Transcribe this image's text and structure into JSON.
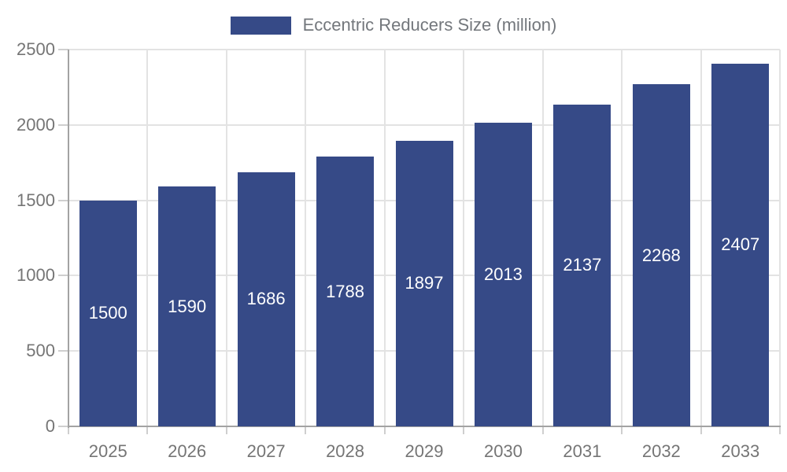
{
  "legend": {
    "label": "Eccentric Reducers Size (million)"
  },
  "colors": {
    "bar": "#364a87",
    "grid": "#e3e3e3",
    "axis": "#a3a3a3",
    "tick": "#cfcfcf",
    "axis_text": "#757575",
    "legend_text": "#73777c",
    "value_text": "#ffffff",
    "background": "#ffffff"
  },
  "chart_data": {
    "type": "bar",
    "title": "Eccentric Reducers Size (million)",
    "categories": [
      "2025",
      "2026",
      "2027",
      "2028",
      "2029",
      "2030",
      "2031",
      "2032",
      "2033"
    ],
    "values": [
      1500,
      1590,
      1686,
      1788,
      1897,
      2013,
      2137,
      2268,
      2407
    ],
    "xlabel": "",
    "ylabel": "",
    "ylim": [
      0,
      2500
    ],
    "yticks": [
      0,
      500,
      1000,
      1500,
      2000,
      2500
    ],
    "grid": true,
    "legend_position": "top",
    "value_label_position": "inside-center"
  }
}
